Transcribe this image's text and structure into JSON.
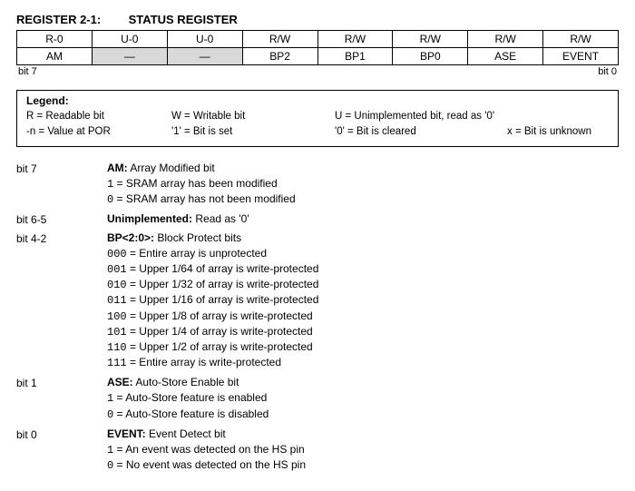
{
  "title": {
    "label": "REGISTER 2-1:",
    "name": "STATUS REGISTER"
  },
  "register": {
    "attrs": [
      "R-0",
      "U-0",
      "U-0",
      "R/W",
      "R/W",
      "R/W",
      "R/W",
      "R/W"
    ],
    "names": [
      "AM",
      "—",
      "—",
      "BP2",
      "BP1",
      "BP0",
      "ASE",
      "EVENT"
    ],
    "shaded": [
      false,
      true,
      true,
      false,
      false,
      false,
      false,
      false
    ],
    "bit_high": "bit 7",
    "bit_low": "bit 0"
  },
  "legend": {
    "title": "Legend:",
    "row1": {
      "c1": "R = Readable bit",
      "c2": "W = Writable bit",
      "c3": "U = Unimplemented bit, read as '0'",
      "c4": ""
    },
    "row2": {
      "c1": "-n = Value at POR",
      "c2": "'1' = Bit is set",
      "c3": "'0' = Bit is cleared",
      "c4": "x = Bit is unknown"
    }
  },
  "descriptions": [
    {
      "bit": "bit 7",
      "name": "AM:",
      "title": "Array Modified bit",
      "values": [
        {
          "code": "1",
          "text": " = SRAM array has been modified"
        },
        {
          "code": "0",
          "text": " = SRAM array has not been modified"
        }
      ]
    },
    {
      "bit": "bit 6-5",
      "name": "Unimplemented:",
      "title": "Read as '0'",
      "values": []
    },
    {
      "bit": "bit 4-2",
      "name": "BP<2:0>:",
      "title": "Block Protect bits",
      "values": [
        {
          "code": "000",
          "text": " = Entire array is unprotected"
        },
        {
          "code": "001",
          "text": " = Upper 1/64 of array is write-protected"
        },
        {
          "code": "010",
          "text": " = Upper 1/32 of array is write-protected"
        },
        {
          "code": "011",
          "text": " = Upper 1/16 of array is write-protected"
        },
        {
          "code": "100",
          "text": " = Upper 1/8 of array is write-protected"
        },
        {
          "code": "101",
          "text": " = Upper 1/4 of array is write-protected"
        },
        {
          "code": "110",
          "text": " = Upper 1/2 of array is write-protected"
        },
        {
          "code": "111",
          "text": " = Entire array is write-protected"
        }
      ]
    },
    {
      "bit": "bit 1",
      "name": "ASE:",
      "title": "Auto-Store Enable bit",
      "values": [
        {
          "code": "1",
          "text": " = Auto-Store feature is enabled"
        },
        {
          "code": "0",
          "text": " = Auto-Store feature is disabled"
        }
      ]
    },
    {
      "bit": "bit 0",
      "name": "EVENT:",
      "title": "Event Detect bit",
      "values": [
        {
          "code": "1",
          "text": " = An event was detected on the HS pin"
        },
        {
          "code": "0",
          "text": " = No event was detected on the HS pin"
        }
      ]
    }
  ]
}
